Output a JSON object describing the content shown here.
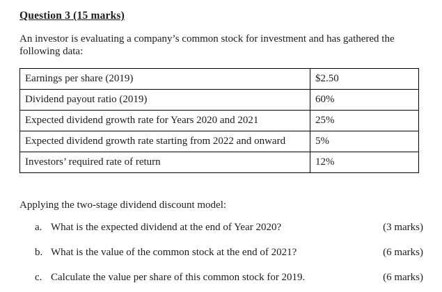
{
  "page": {
    "title": "Question 3 (15 marks)",
    "intro": "An investor is evaluating a company’s common stock for investment and has gathered the following data:",
    "table": {
      "rows": [
        {
          "label": "Earnings per share (2019)",
          "value": "$2.50"
        },
        {
          "label": "Dividend payout ratio (2019)",
          "value": "60%"
        },
        {
          "label": "Expected dividend growth rate for Years 2020 and 2021",
          "value": "25%"
        },
        {
          "label": "Expected dividend growth rate starting from 2022 and onward",
          "value": "5%"
        },
        {
          "label": "Investors’ required rate of return",
          "value": "12%"
        }
      ]
    },
    "model_line": "Applying the two-stage dividend discount model:",
    "questions": [
      {
        "letter": "a.",
        "text": "What is the expected dividend at the end of Year 2020?",
        "marks": "(3 marks)"
      },
      {
        "letter": "b.",
        "text": "What is the value of the common stock at the end of 2021?",
        "marks": "(6 marks)"
      },
      {
        "letter": "c.",
        "text": "Calculate the value per share of this common stock for 2019.",
        "marks": "(6 marks)"
      }
    ],
    "colors": {
      "text": "#1c1c1c",
      "border": "#000000",
      "background": "#ffffff"
    }
  }
}
